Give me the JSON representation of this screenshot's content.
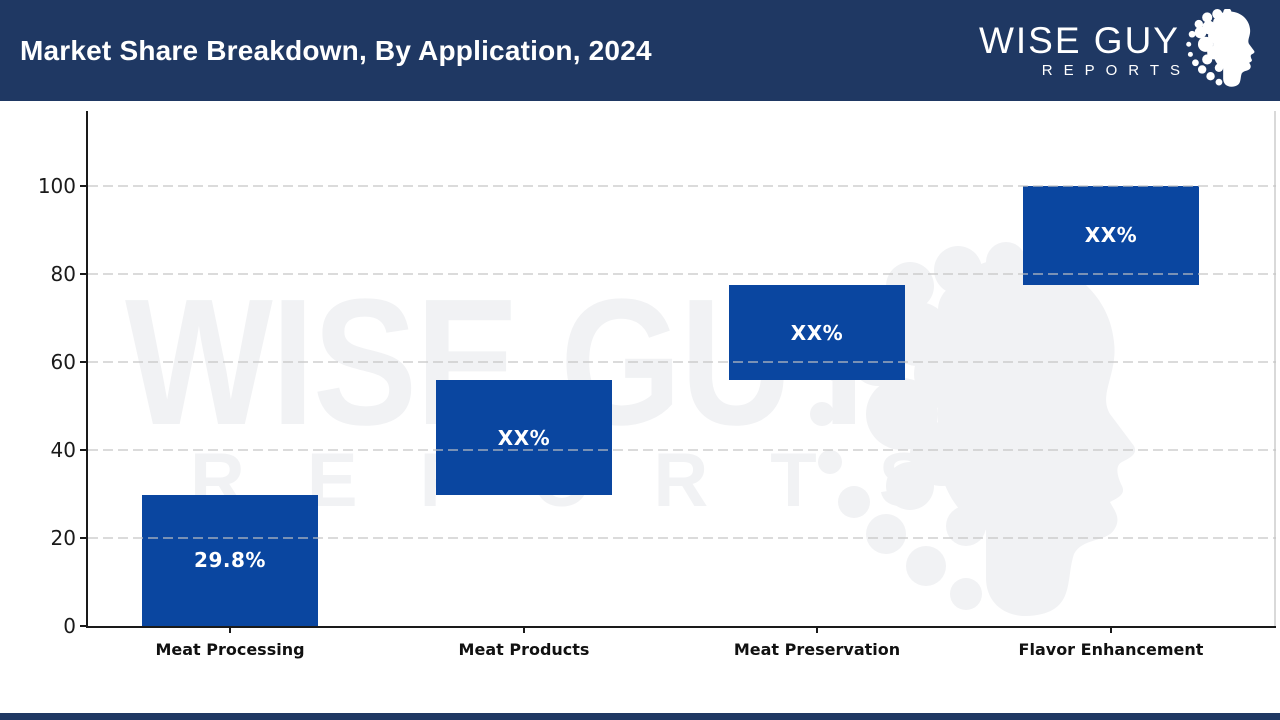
{
  "page": {
    "bg_color": "#ffffff"
  },
  "header": {
    "bg_color": "#1f3863",
    "title": "Market Share Breakdown, By Application, 2024",
    "logo": {
      "name": "WISE GUY",
      "tagline": "REPORTS"
    }
  },
  "footer": {
    "bg_color": "#1f3863"
  },
  "watermark": {
    "name": "WISE GUY",
    "tagline": "REPORTS"
  },
  "chart_data": {
    "type": "bar",
    "subtype": "waterfall",
    "title": "Market Share Breakdown, By Application, 2024",
    "categories": [
      "Meat Processing",
      "Meat Products",
      "Meat Preservation",
      "Flavor Enhancement"
    ],
    "segments": [
      {
        "category": "Meat Processing",
        "start": 0,
        "end": 29.8,
        "value": 29.8,
        "label": "29.8%"
      },
      {
        "category": "Meat Products",
        "start": 29.8,
        "end": 55.8,
        "value": 26.0,
        "label": "XX%"
      },
      {
        "category": "Meat Preservation",
        "start": 55.8,
        "end": 77.6,
        "value": 21.8,
        "label": "XX%"
      },
      {
        "category": "Flavor Enhancement",
        "start": 77.6,
        "end": 100.0,
        "value": 22.4,
        "label": "XX%"
      }
    ],
    "yticks": [
      0,
      20,
      40,
      60,
      80,
      100
    ],
    "ylim": [
      0,
      110
    ],
    "bar_color": "#0a46a0",
    "axis_color": "#1a1a1a",
    "grid": true,
    "grid_style": "dashed",
    "legend_position": "none",
    "xlabel": "",
    "ylabel": ""
  }
}
